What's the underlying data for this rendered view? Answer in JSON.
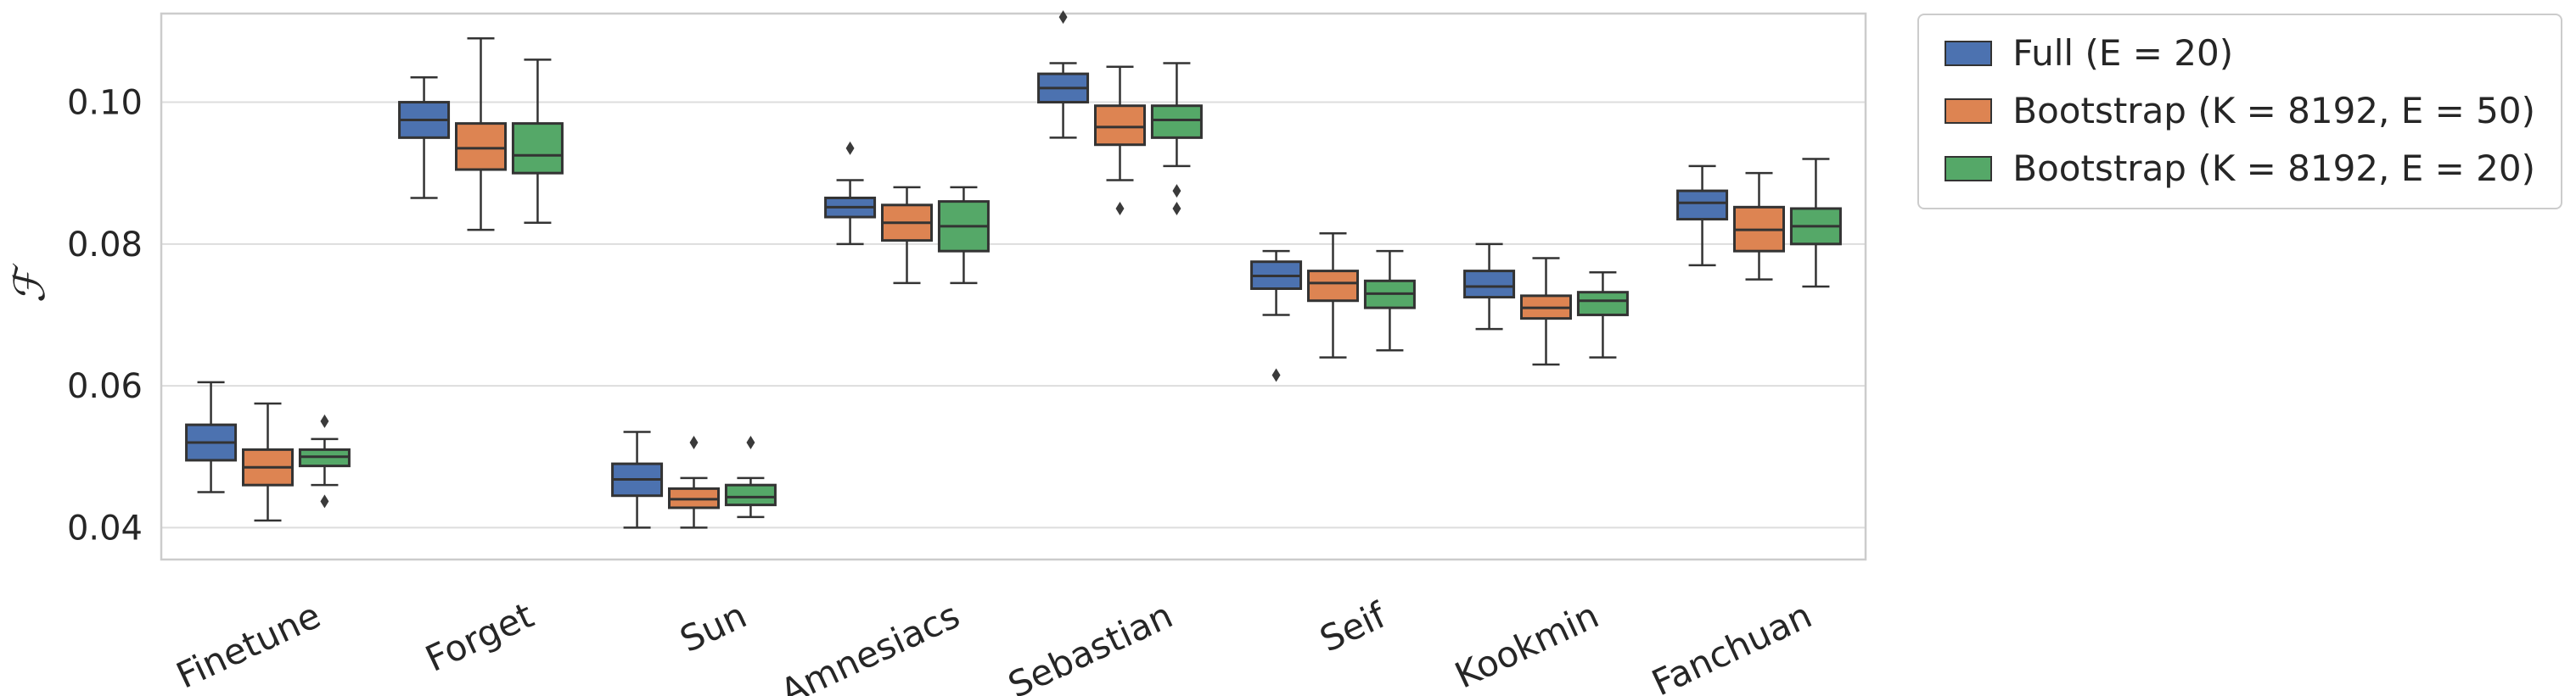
{
  "chart_data": {
    "type": "boxplot",
    "title": "",
    "ylabel": "ℱ",
    "xlabel": "",
    "grid": "horizontal",
    "legend_position": "outside-top-right",
    "ylim": [
      0.0355,
      0.1125
    ],
    "yticks": [
      0.04,
      0.06,
      0.08,
      0.1
    ],
    "categories": [
      "Finetune",
      "Forget",
      "Sun",
      "Amnesiacs",
      "Sebastian",
      "Seif",
      "Kookmin",
      "Fanchuan"
    ],
    "series": [
      {
        "name": "Full (E = 20)",
        "color": "#4C72B0",
        "boxes": [
          {
            "whislo": 0.045,
            "q1": 0.0495,
            "med": 0.052,
            "q3": 0.0545,
            "whishi": 0.0605,
            "fliers": []
          },
          {
            "whislo": 0.0865,
            "q1": 0.095,
            "med": 0.0975,
            "q3": 0.1,
            "whishi": 0.1035,
            "fliers": []
          },
          {
            "whislo": 0.04,
            "q1": 0.0445,
            "med": 0.0468,
            "q3": 0.049,
            "whishi": 0.0535,
            "fliers": []
          },
          {
            "whislo": 0.08,
            "q1": 0.0838,
            "med": 0.0852,
            "q3": 0.0865,
            "whishi": 0.089,
            "fliers": [
              0.0935
            ]
          },
          {
            "whislo": 0.095,
            "q1": 0.1,
            "med": 0.102,
            "q3": 0.104,
            "whishi": 0.1055,
            "fliers": [
              0.112
            ]
          },
          {
            "whislo": 0.07,
            "q1": 0.0737,
            "med": 0.0755,
            "q3": 0.0775,
            "whishi": 0.079,
            "fliers": [
              0.0615
            ]
          },
          {
            "whislo": 0.068,
            "q1": 0.0725,
            "med": 0.074,
            "q3": 0.0762,
            "whishi": 0.08,
            "fliers": []
          },
          {
            "whislo": 0.077,
            "q1": 0.0835,
            "med": 0.0858,
            "q3": 0.0875,
            "whishi": 0.091,
            "fliers": []
          }
        ]
      },
      {
        "name": "Bootstrap (K = 8192, E = 50)",
        "color": "#DD8452",
        "boxes": [
          {
            "whislo": 0.041,
            "q1": 0.046,
            "med": 0.0485,
            "q3": 0.051,
            "whishi": 0.0575,
            "fliers": []
          },
          {
            "whislo": 0.082,
            "q1": 0.0905,
            "med": 0.0935,
            "q3": 0.097,
            "whishi": 0.109,
            "fliers": []
          },
          {
            "whislo": 0.04,
            "q1": 0.0428,
            "med": 0.044,
            "q3": 0.0455,
            "whishi": 0.047,
            "fliers": [
              0.052
            ]
          },
          {
            "whislo": 0.0745,
            "q1": 0.0805,
            "med": 0.083,
            "q3": 0.0855,
            "whishi": 0.088,
            "fliers": []
          },
          {
            "whislo": 0.089,
            "q1": 0.094,
            "med": 0.0965,
            "q3": 0.0995,
            "whishi": 0.105,
            "fliers": [
              0.085
            ]
          },
          {
            "whislo": 0.064,
            "q1": 0.072,
            "med": 0.0745,
            "q3": 0.0762,
            "whishi": 0.0815,
            "fliers": []
          },
          {
            "whislo": 0.063,
            "q1": 0.0695,
            "med": 0.071,
            "q3": 0.0727,
            "whishi": 0.078,
            "fliers": []
          },
          {
            "whislo": 0.075,
            "q1": 0.079,
            "med": 0.082,
            "q3": 0.0852,
            "whishi": 0.09,
            "fliers": []
          }
        ]
      },
      {
        "name": "Bootstrap (K = 8192, E = 20)",
        "color": "#55A868",
        "boxes": [
          {
            "whislo": 0.046,
            "q1": 0.0487,
            "med": 0.05,
            "q3": 0.051,
            "whishi": 0.0525,
            "fliers": [
              0.055,
              0.0437
            ]
          },
          {
            "whislo": 0.083,
            "q1": 0.09,
            "med": 0.0925,
            "q3": 0.097,
            "whishi": 0.106,
            "fliers": []
          },
          {
            "whislo": 0.0415,
            "q1": 0.0432,
            "med": 0.0443,
            "q3": 0.046,
            "whishi": 0.047,
            "fliers": [
              0.052
            ]
          },
          {
            "whislo": 0.0745,
            "q1": 0.079,
            "med": 0.0825,
            "q3": 0.086,
            "whishi": 0.088,
            "fliers": []
          },
          {
            "whislo": 0.091,
            "q1": 0.095,
            "med": 0.0975,
            "q3": 0.0995,
            "whishi": 0.1055,
            "fliers": [
              0.0875,
              0.085
            ]
          },
          {
            "whislo": 0.065,
            "q1": 0.071,
            "med": 0.073,
            "q3": 0.0748,
            "whishi": 0.079,
            "fliers": []
          },
          {
            "whislo": 0.064,
            "q1": 0.07,
            "med": 0.072,
            "q3": 0.0732,
            "whishi": 0.076,
            "fliers": []
          },
          {
            "whislo": 0.074,
            "q1": 0.08,
            "med": 0.0825,
            "q3": 0.085,
            "whishi": 0.092,
            "fliers": []
          }
        ]
      }
    ]
  },
  "legend": {
    "items": [
      {
        "label": "Full (E = 20)"
      },
      {
        "label": "Bootstrap (K = 8192, E = 50)"
      },
      {
        "label": "Bootstrap (K = 8192, E = 20)"
      }
    ]
  }
}
